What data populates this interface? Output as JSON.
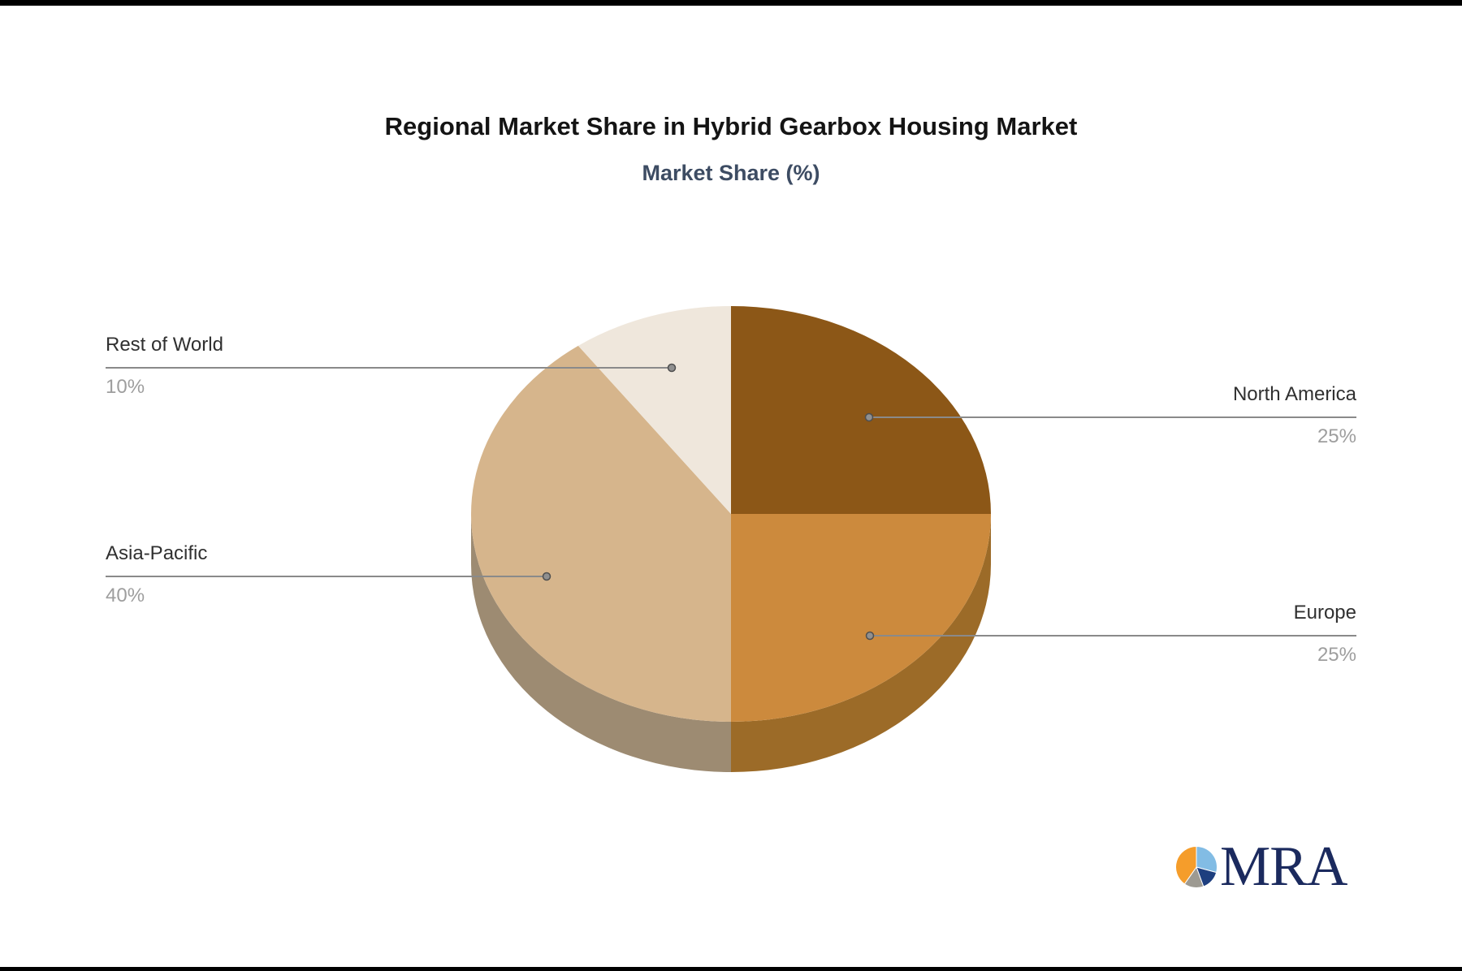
{
  "header": {
    "title": "Regional Market Share in Hybrid Gearbox Housing Market",
    "subtitle": "Market Share (%)"
  },
  "chart_data": {
    "type": "pie",
    "title": "Regional Market Share in Hybrid Gearbox Housing Market",
    "subtitle": "Market Share (%)",
    "labels": [
      "North America",
      "Europe",
      "Asia-Pacific",
      "Rest of World"
    ],
    "values": [
      25,
      25,
      40,
      10
    ],
    "value_labels": [
      "25%",
      "25%",
      "40%",
      "10%"
    ],
    "colors": [
      "#8C5717",
      "#CC8A3D",
      "#D6B58C",
      "#EFE7DC"
    ],
    "side_colors": [
      "#6E430F",
      "#9C6B28",
      "#9D8B72",
      "#BAA998"
    ],
    "start_angle_deg": 0,
    "direction": "clockwise",
    "style": "3d",
    "legend_position": "none",
    "label_style": "leader-lines"
  },
  "colors": {
    "title": "#141414",
    "subtitle": "#3D4C63",
    "label_text": "#303030",
    "pct_text": "#9E9E9E",
    "leader_line": "#8A8A8A",
    "leader_dot_fill": "#909090",
    "leader_dot_stroke": "#4F4F4F"
  },
  "logo": {
    "text": "MRA",
    "text_color": "#1B2A5E",
    "icon": {
      "name": "pie-logo-icon",
      "slices": [
        {
          "name": "light-blue",
          "color": "#82BCE4",
          "from_deg": 0,
          "to_deg": 105
        },
        {
          "name": "navy",
          "color": "#1E3F7F",
          "from_deg": 105,
          "to_deg": 160
        },
        {
          "name": "gray",
          "color": "#9D9A92",
          "from_deg": 160,
          "to_deg": 215
        },
        {
          "name": "orange",
          "color": "#F59D2B",
          "from_deg": 215,
          "to_deg": 360
        }
      ]
    }
  }
}
